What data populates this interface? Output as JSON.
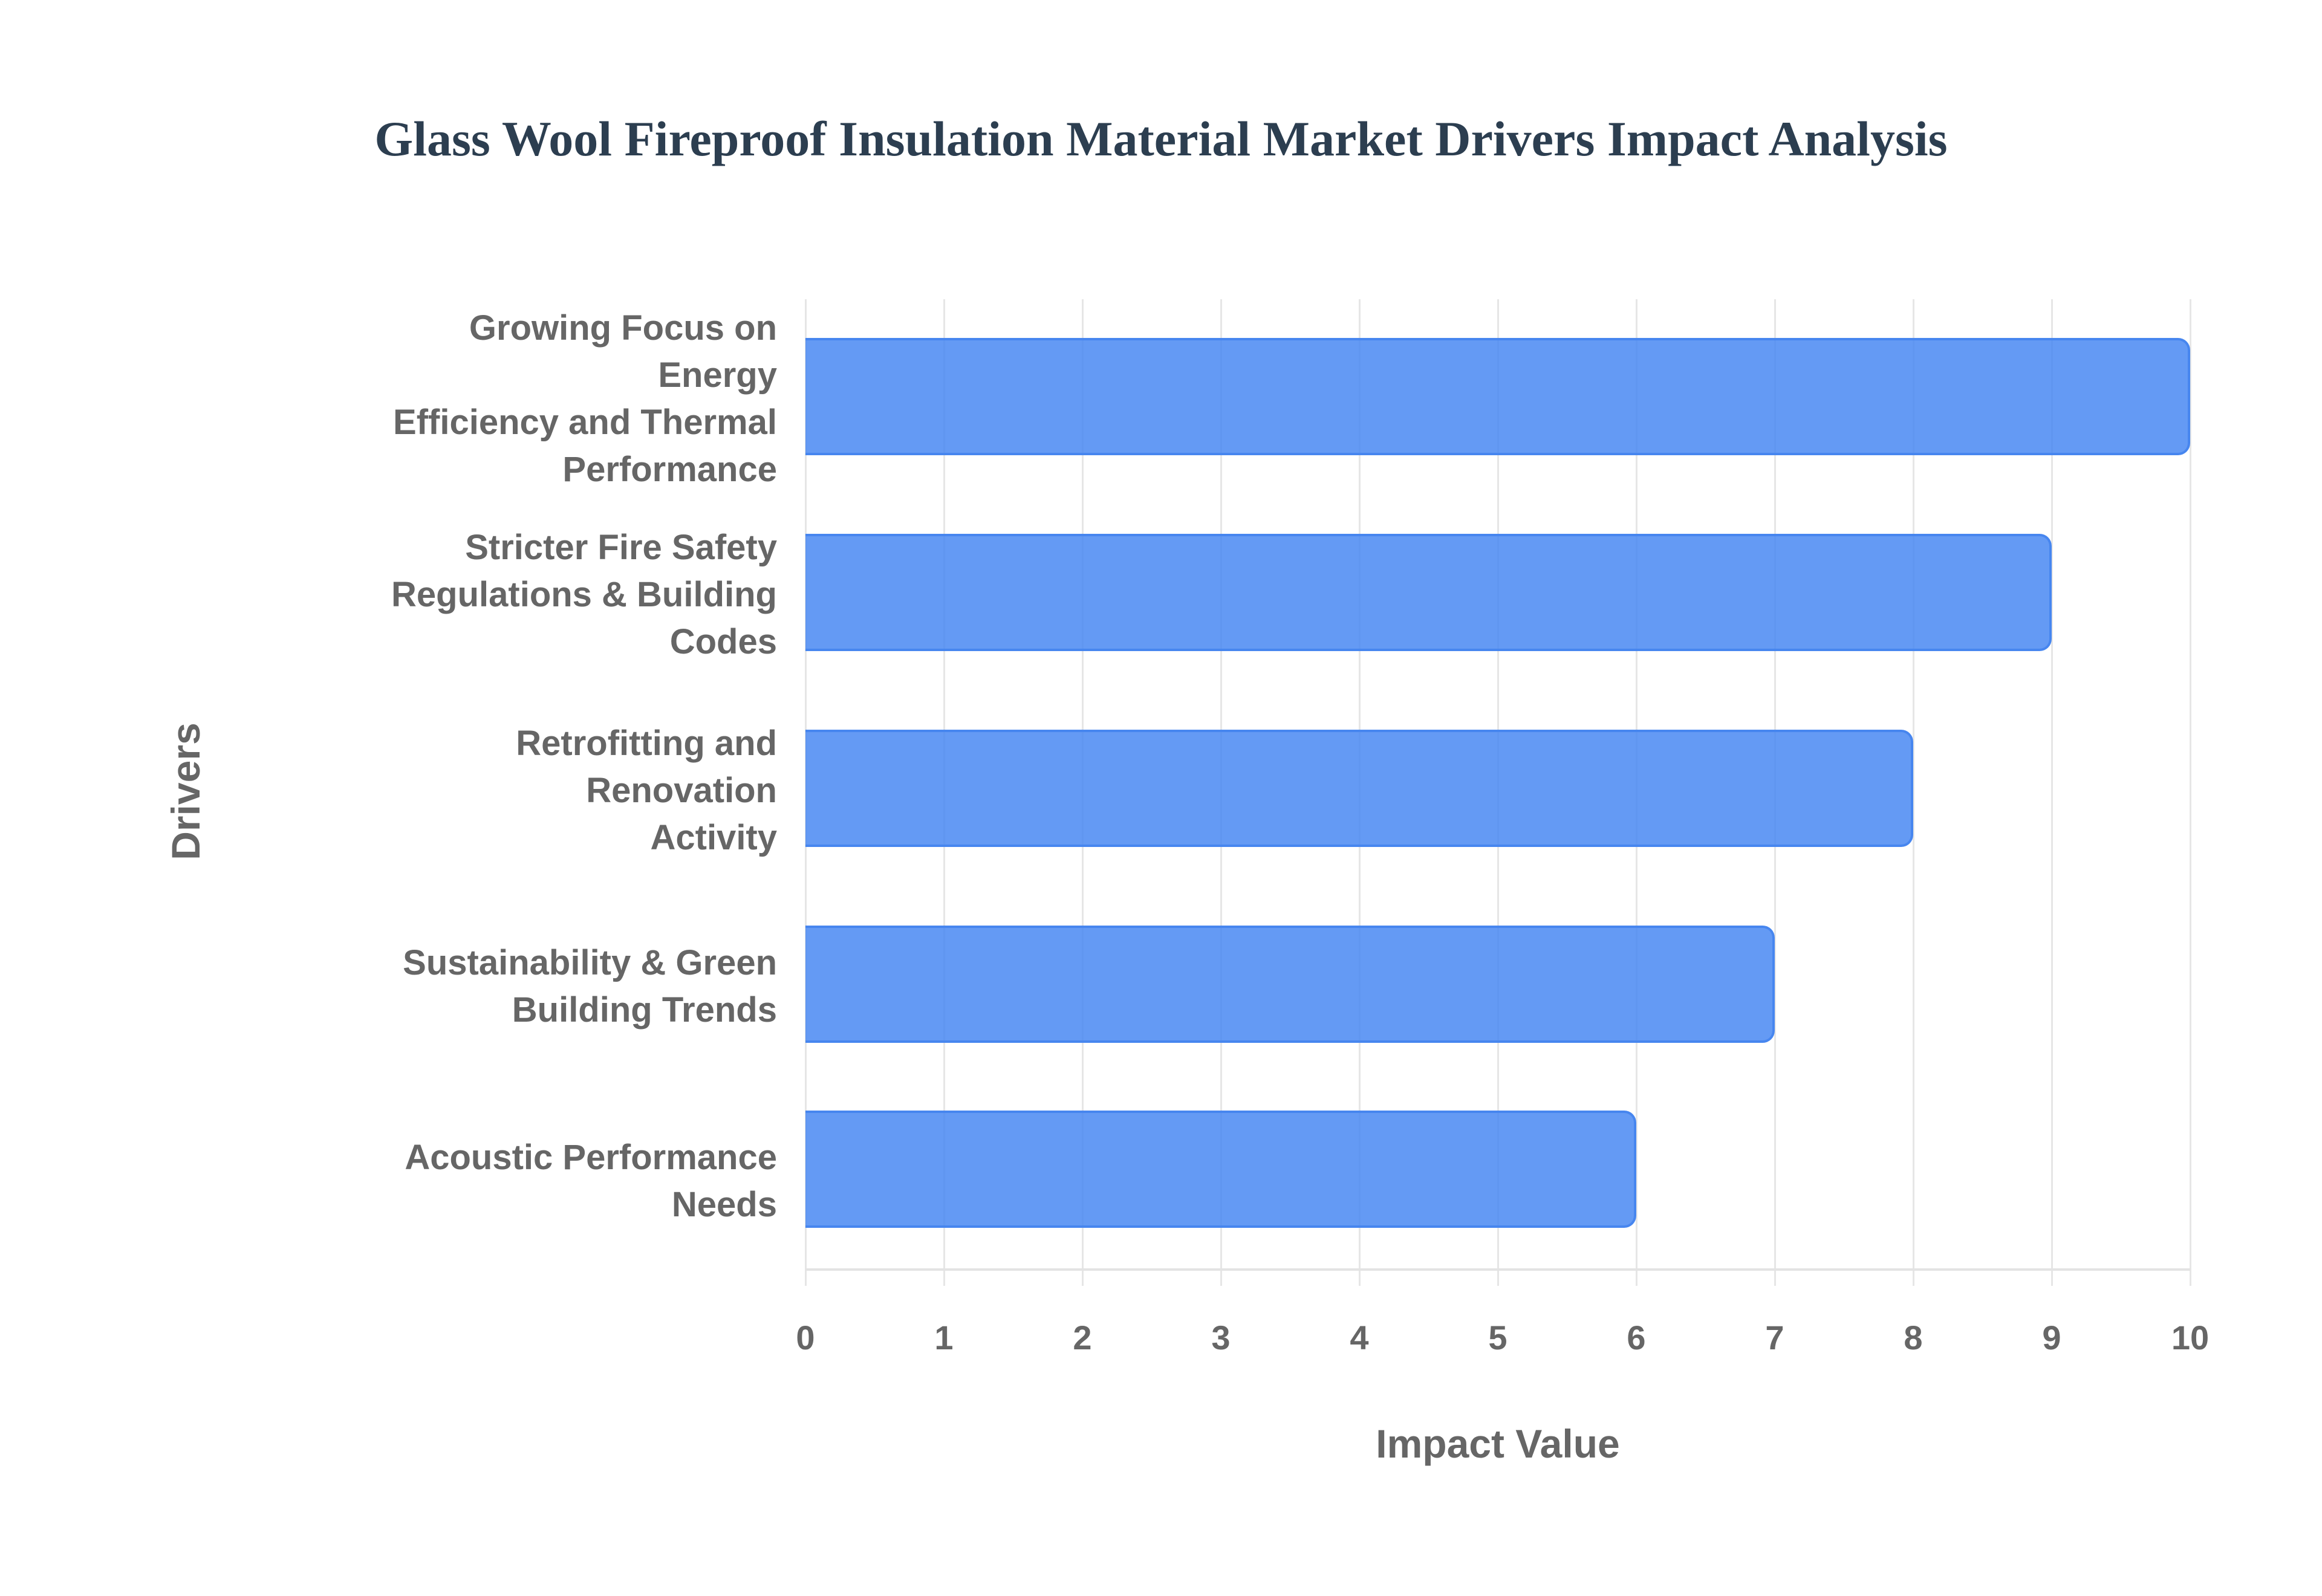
{
  "title": "Glass Wool Fireproof Insulation Material Market Drivers Impact Analysis",
  "colors": {
    "bar_fill": "#6399f4",
    "bar_border": "#4786ef",
    "title": "#2c3e50",
    "axis_text": "#666666",
    "grid": "#e6e6e6"
  },
  "chart_data": {
    "type": "bar",
    "orientation": "horizontal",
    "title": "Glass Wool Fireproof Insulation Material Market Drivers Impact Analysis",
    "xlabel": "Impact Value",
    "ylabel": "Drivers",
    "categories": [
      "Growing Focus on Energy Efficiency and Thermal Performance",
      "Stricter Fire Safety Regulations & Building Codes",
      "Retrofitting and Renovation Activity",
      "Sustainability & Green Building Trends",
      "Acoustic Performance Needs"
    ],
    "values": [
      10,
      9,
      8,
      7,
      6
    ],
    "xlim": [
      0,
      10
    ],
    "xticks": [
      "0",
      "1",
      "2",
      "3",
      "4",
      "5",
      "6",
      "7",
      "8",
      "9",
      "10"
    ],
    "grid": true,
    "legend": null
  },
  "category_labels_wrapped": [
    "Growing Focus on Energy\nEfficiency and Thermal\nPerformance",
    "Stricter Fire Safety\nRegulations & Building Codes",
    "Retrofitting and Renovation\nActivity",
    "Sustainability & Green\nBuilding Trends",
    "Acoustic Performance Needs"
  ]
}
